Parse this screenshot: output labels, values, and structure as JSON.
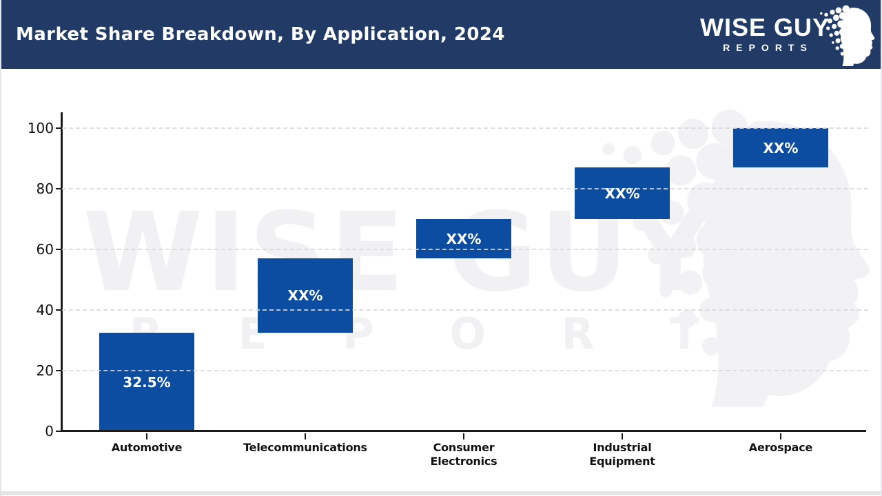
{
  "header": {
    "title": "Market Share Breakdown, By Application, 2024",
    "logo": {
      "name": "Wise Guy Reports",
      "line1": "WISE GUY",
      "line2": "REPORTS"
    },
    "colors": {
      "bg": "#213a66",
      "text": "#ffffff"
    }
  },
  "watermark": {
    "line1": "WISE GUY",
    "line2": "R E P O R T S"
  },
  "chart_data": {
    "type": "bar",
    "variant": "waterfall",
    "title": "Market Share Breakdown, By Application, 2024",
    "categories": [
      "Automotive",
      "Telecommunications",
      "Consumer Electronics",
      "Industrial Equipment",
      "Aerospace"
    ],
    "bars": [
      {
        "category": "Automotive",
        "label_lines": [
          "Automotive"
        ],
        "base": 0,
        "top": 32.5,
        "value_label": "32.5%"
      },
      {
        "category": "Telecommunications",
        "label_lines": [
          "Telecommunications"
        ],
        "base": 32.5,
        "top": 57,
        "value_label": "XX%"
      },
      {
        "category": "Consumer Electronics",
        "label_lines": [
          "Consumer",
          "Electronics"
        ],
        "base": 57,
        "top": 70,
        "value_label": "XX%"
      },
      {
        "category": "Industrial Equipment",
        "label_lines": [
          "Industrial",
          "Equipment"
        ],
        "base": 70,
        "top": 87,
        "value_label": "XX%"
      },
      {
        "category": "Aerospace",
        "label_lines": [
          "Aerospace"
        ],
        "base": 87,
        "top": 100,
        "value_label": "XX%"
      }
    ],
    "yticks": [
      0,
      20,
      40,
      60,
      80,
      100
    ],
    "ylim": [
      0,
      105
    ],
    "xlabel": "",
    "ylabel": "",
    "grid": {
      "horizontal": true,
      "style": "dashed"
    },
    "legend": null,
    "colors": {
      "bar": "#0d4da1",
      "value_label": "#ffffff",
      "axis": "#1a1a1a",
      "grid": "#d9d9d9"
    }
  }
}
